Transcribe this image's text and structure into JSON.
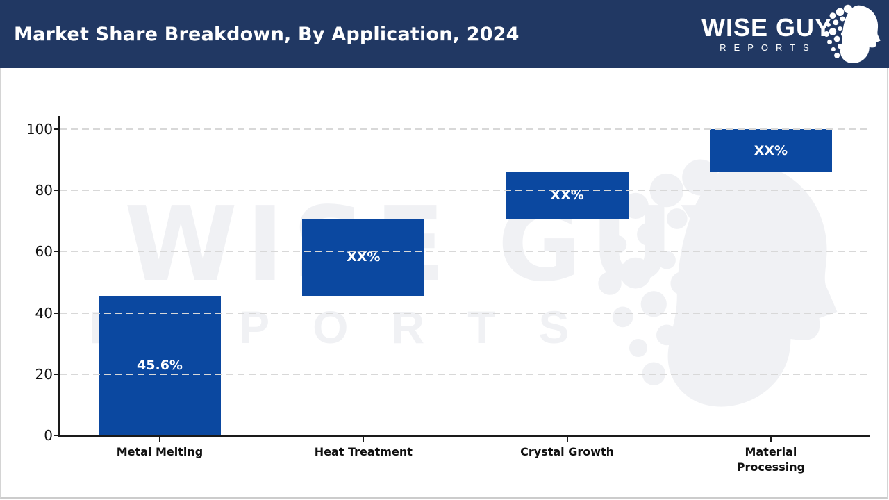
{
  "header": {
    "title": "Market Share Breakdown, By Application, 2024",
    "logo": {
      "line1": "WISE GUY",
      "line2": "REPORTS"
    }
  },
  "watermark": {
    "line1": "WISE GUY",
    "line2": "REPORTS"
  },
  "chart_data": {
    "type": "bar",
    "subtype": "waterfall",
    "title": "Market Share Breakdown, By Application, 2024",
    "categories": [
      "Metal Melting",
      "Heat Treatment",
      "Crystal Growth",
      "Material Processing"
    ],
    "segments": [
      {
        "category": "Metal Melting",
        "start": 0,
        "end": 45.6,
        "value": 45.6,
        "label": "45.6%"
      },
      {
        "category": "Heat Treatment",
        "start": 45.6,
        "end": 70.8,
        "value": 25.2,
        "label": "XX%"
      },
      {
        "category": "Crystal Growth",
        "start": 70.8,
        "end": 85.9,
        "value": 15.1,
        "label": "XX%"
      },
      {
        "category": "Material Processing",
        "start": 85.9,
        "end": 100,
        "value": 14.1,
        "label": "XX%"
      }
    ],
    "ylim": [
      0,
      104
    ],
    "yticks": [
      0,
      20,
      40,
      60,
      80,
      100
    ],
    "grid": {
      "horizontal": true,
      "style": "dashed",
      "color": "#d8d8d8"
    },
    "bar_color": "#0b48a0",
    "value_label_color": "#ffffff",
    "xlabel": "",
    "ylabel": ""
  },
  "colors": {
    "header_bg": "#213863",
    "bar": "#0b48a0",
    "grid": "#d8d8d8",
    "axis": "#1a1a1a",
    "watermark": "#f0f1f4",
    "title_text": "#ffffff"
  }
}
